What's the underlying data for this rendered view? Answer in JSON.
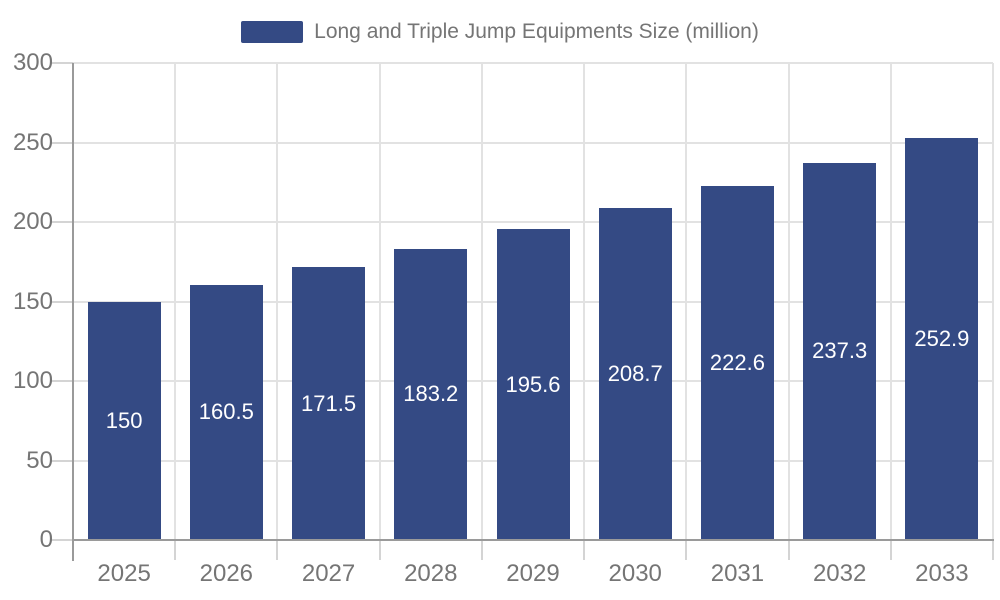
{
  "chart_data": {
    "type": "bar",
    "title": "Long and Triple Jump Equipments Size (million)",
    "legend_label": "Long and Triple Jump Equipments Size (million)",
    "categories": [
      "2025",
      "2026",
      "2027",
      "2028",
      "2029",
      "2030",
      "2031",
      "2032",
      "2033"
    ],
    "values": [
      150,
      160.5,
      171.5,
      183.2,
      195.6,
      208.7,
      222.6,
      237.3,
      252.9
    ],
    "value_labels": [
      "150",
      "160.5",
      "171.5",
      "183.2",
      "195.6",
      "208.7",
      "222.6",
      "237.3",
      "252.9"
    ],
    "xlabel": "",
    "ylabel": "",
    "ylim": [
      0,
      300
    ],
    "yticks": [
      0,
      50,
      100,
      150,
      200,
      250,
      300
    ],
    "grid": true,
    "legend_position": "top",
    "colors": {
      "bar": "#344a84",
      "value_label": "#ffffff",
      "axis_text": "#757575",
      "legend_text": "#757575",
      "grid_line": "#e2e2e2",
      "tick_line": "#d4d4d4",
      "axis_line": "#9a9a9a"
    }
  }
}
